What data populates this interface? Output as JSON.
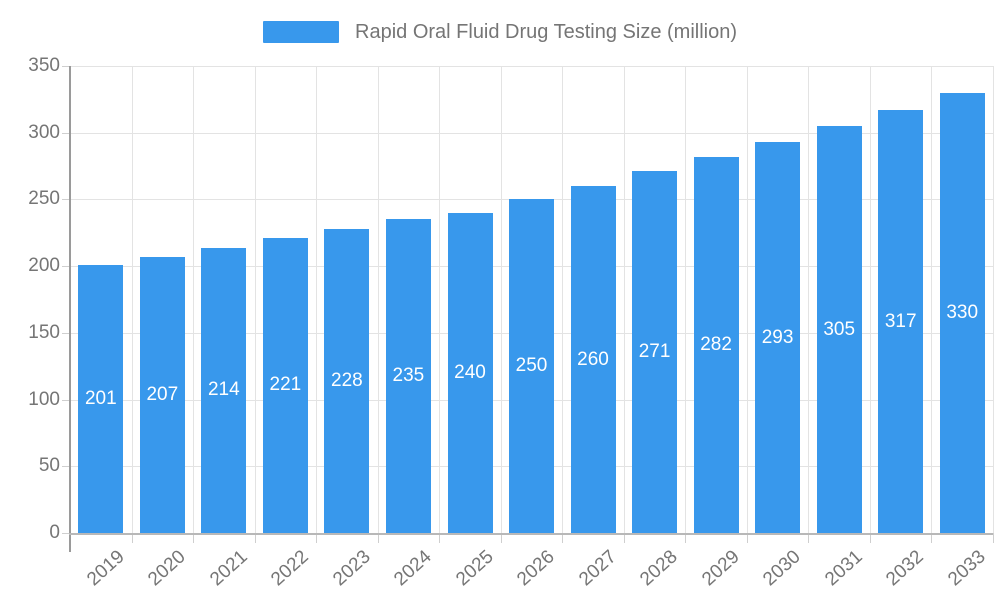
{
  "legend": {
    "label": "Rapid Oral Fluid Drug Testing Size (million)",
    "swatch_color": "#3898ec"
  },
  "chart_data": {
    "type": "bar",
    "title": "Rapid Oral Fluid Drug Testing Size (million)",
    "categories": [
      "2019",
      "2020",
      "2021",
      "2022",
      "2023",
      "2024",
      "2025",
      "2026",
      "2027",
      "2028",
      "2029",
      "2030",
      "2031",
      "2032",
      "2033"
    ],
    "values": [
      201,
      207,
      214,
      221,
      228,
      235,
      240,
      250,
      260,
      271,
      282,
      293,
      305,
      317,
      330
    ],
    "series_name": "Rapid Oral Fluid Drug Testing Size (million)",
    "xlabel": "",
    "ylabel": "",
    "ylim": [
      0,
      350
    ],
    "ytick_step": 50,
    "grid": true,
    "legend_position": "top-center",
    "value_label_style": "inside-center-white",
    "xlabel_rotation_deg": -42
  },
  "colors": {
    "bar": "#3898ec",
    "text_gray": "#757575",
    "gridline": "#e3e3e3",
    "y_axis_line": "#9a9a9a",
    "x_axis_line": "#b8b8b8",
    "tick": "#cfcfcf",
    "bar_value_text": "#ffffff",
    "background": "#ffffff"
  }
}
